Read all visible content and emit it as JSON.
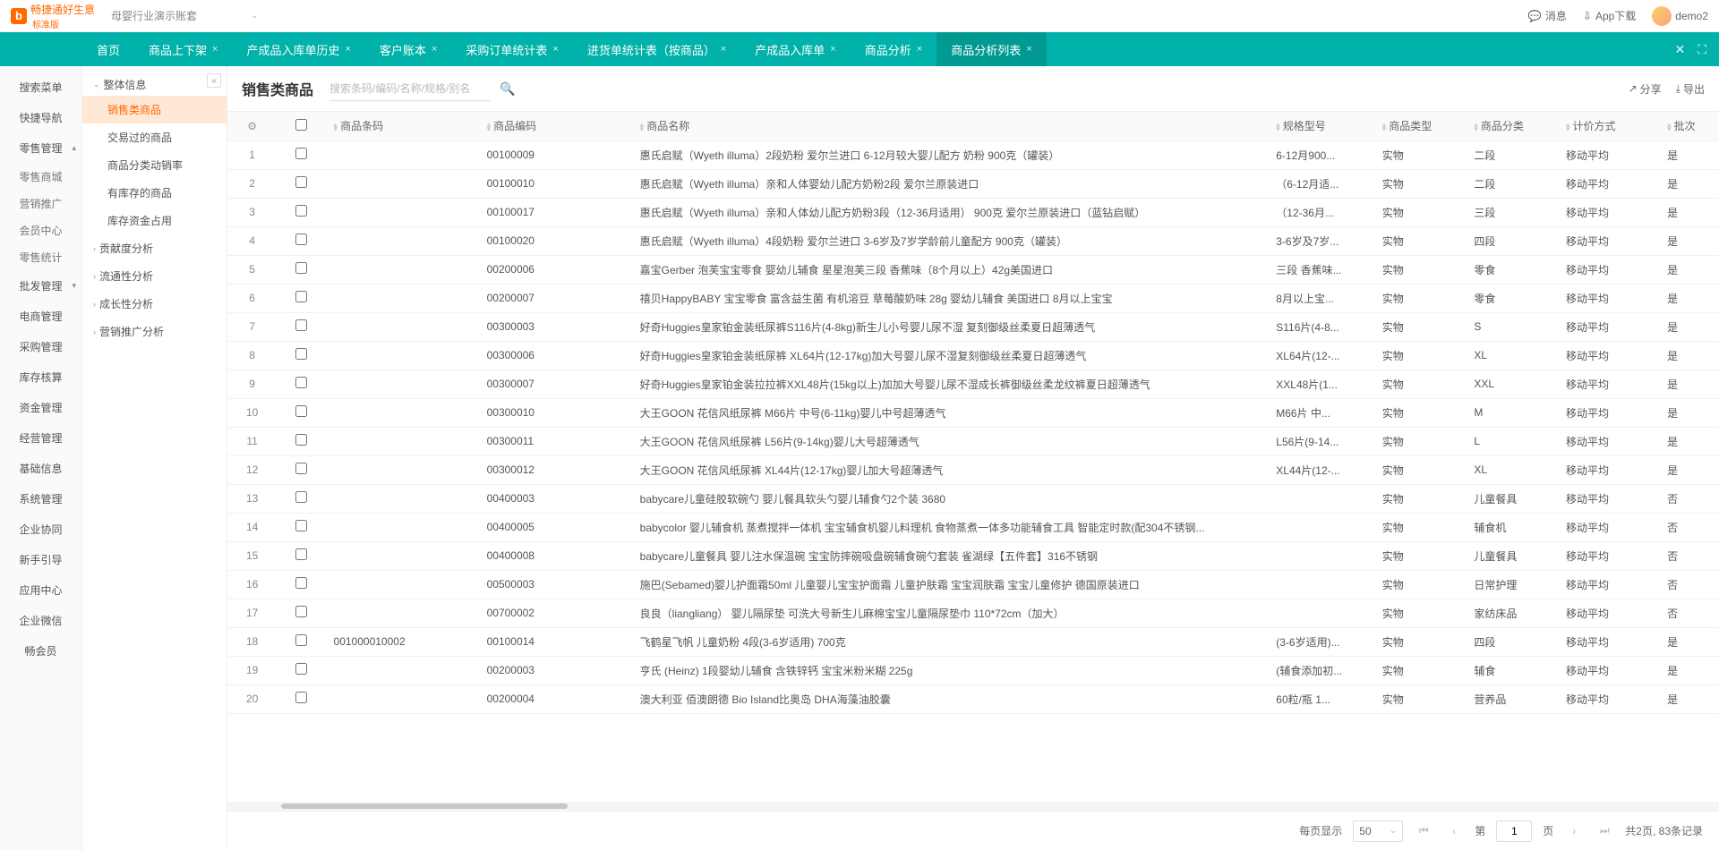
{
  "topbar": {
    "logo_text": "畅捷通好生意",
    "logo_badge": "标准版",
    "account": "母婴行业演示账套",
    "msg": "消息",
    "download": "App下载",
    "user": "demo2"
  },
  "tabs": [
    {
      "label": "首页",
      "closable": false
    },
    {
      "label": "商品上下架",
      "closable": true
    },
    {
      "label": "产成品入库单历史",
      "closable": true
    },
    {
      "label": "客户账本",
      "closable": true
    },
    {
      "label": "采购订单统计表",
      "closable": true
    },
    {
      "label": "进货单统计表（按商品）",
      "closable": true
    },
    {
      "label": "产成品入库单",
      "closable": true
    },
    {
      "label": "商品分析",
      "closable": true
    },
    {
      "label": "商品分析列表",
      "closable": true,
      "active": true
    }
  ],
  "leftnav": [
    {
      "label": "搜索菜单"
    },
    {
      "label": "快捷导航"
    },
    {
      "label": "零售管理",
      "arrow": "up",
      "subs": [
        "零售商城",
        "营销推广",
        "会员中心",
        "零售统计"
      ]
    },
    {
      "label": "批发管理",
      "arrow": "down"
    },
    {
      "label": "电商管理"
    },
    {
      "label": "采购管理"
    },
    {
      "label": "库存核算"
    },
    {
      "label": "资金管理"
    },
    {
      "label": "经营管理"
    },
    {
      "label": "基础信息"
    },
    {
      "label": "系统管理"
    },
    {
      "label": "企业协同"
    },
    {
      "label": "新手引导"
    },
    {
      "label": "应用中心"
    },
    {
      "label": "企业微信"
    },
    {
      "label": "畅会员"
    }
  ],
  "tree": {
    "head": "整体信息",
    "items": [
      {
        "label": "销售类商品",
        "sel": true
      },
      {
        "label": "交易过的商品"
      },
      {
        "label": "商品分类动销率"
      },
      {
        "label": "有库存的商品"
      },
      {
        "label": "库存资金占用"
      }
    ],
    "groups": [
      "贡献度分析",
      "流通性分析",
      "成长性分析",
      "营销推广分析"
    ]
  },
  "main": {
    "title": "销售类商品",
    "search_ph": "搜索条码/编码/名称/规格/别名",
    "share": "分享",
    "export": "导出"
  },
  "columns": [
    "",
    "",
    "商品条码",
    "商品编码",
    "商品名称",
    "规格型号",
    "商品类型",
    "商品分类",
    "计价方式",
    "批次"
  ],
  "rows": [
    {
      "i": 1,
      "bar": "",
      "code": "00100009",
      "name": "惠氏启赋（Wyeth illuma）2段奶粉 爱尔兰进口 6-12月较大婴儿配方 奶粉 900克（罐装）",
      "spec": "6-12月900...",
      "type": "实物",
      "cat": "二段",
      "price": "移动平均",
      "b": "是"
    },
    {
      "i": 2,
      "bar": "",
      "code": "00100010",
      "name": "惠氏启赋（Wyeth illuma）亲和人体婴幼儿配方奶粉2段 爱尔兰原装进口",
      "spec": "（6-12月适...",
      "type": "实物",
      "cat": "二段",
      "price": "移动平均",
      "b": "是"
    },
    {
      "i": 3,
      "bar": "",
      "code": "00100017",
      "name": "惠氏启赋（Wyeth illuma）亲和人体幼儿配方奶粉3段（12-36月适用） 900克 爱尔兰原装进口（蓝钻启赋）",
      "spec": "（12-36月...",
      "type": "实物",
      "cat": "三段",
      "price": "移动平均",
      "b": "是"
    },
    {
      "i": 4,
      "bar": "",
      "code": "00100020",
      "name": "惠氏启赋（Wyeth illuma）4段奶粉 爱尔兰进口 3-6岁及7岁学龄前儿童配方 900克（罐装）",
      "spec": "3-6岁及7岁...",
      "type": "实物",
      "cat": "四段",
      "price": "移动平均",
      "b": "是"
    },
    {
      "i": 5,
      "bar": "",
      "code": "00200006",
      "name": "嘉宝Gerber 泡芙宝宝零食 婴幼儿辅食 星星泡芙三段 香蕉味（8个月以上）42g美国进口",
      "spec": "三段 香蕉味...",
      "type": "实物",
      "cat": "零食",
      "price": "移动平均",
      "b": "是"
    },
    {
      "i": 6,
      "bar": "",
      "code": "00200007",
      "name": "禧贝HappyBABY 宝宝零食 富含益生菌 有机溶豆 草莓酸奶味 28g 婴幼儿辅食 美国进口 8月以上宝宝",
      "spec": "8月以上宝...",
      "type": "实物",
      "cat": "零食",
      "price": "移动平均",
      "b": "是"
    },
    {
      "i": 7,
      "bar": "",
      "code": "00300003",
      "name": "好奇Huggies皇家铂金装纸尿裤S116片(4-8kg)新生儿小号婴儿尿不湿 复刻御级丝柔夏日超薄透气",
      "spec": "S116片(4-8...",
      "type": "实物",
      "cat": "S",
      "price": "移动平均",
      "b": "是"
    },
    {
      "i": 8,
      "bar": "",
      "code": "00300006",
      "name": "好奇Huggies皇家铂金装纸尿裤 XL64片(12-17kg)加大号婴儿尿不湿复刻御级丝柔夏日超薄透气",
      "spec": "XL64片(12-...",
      "type": "实物",
      "cat": "XL",
      "price": "移动平均",
      "b": "是"
    },
    {
      "i": 9,
      "bar": "",
      "code": "00300007",
      "name": "好奇Huggies皇家铂金装拉拉裤XXL48片(15kg以上)加加大号婴儿尿不湿成长裤御级丝柔龙纹裤夏日超薄透气",
      "spec": "XXL48片(1...",
      "type": "实物",
      "cat": "XXL",
      "price": "移动平均",
      "b": "是"
    },
    {
      "i": 10,
      "bar": "",
      "code": "00300010",
      "name": "大王GOON 花信风纸尿裤 M66片 中号(6-11kg)婴儿中号超薄透气",
      "spec": "M66片 中...",
      "type": "实物",
      "cat": "M",
      "price": "移动平均",
      "b": "是"
    },
    {
      "i": 11,
      "bar": "",
      "code": "00300011",
      "name": "大王GOON 花信风纸尿裤 L56片(9-14kg)婴儿大号超薄透气",
      "spec": "L56片(9-14...",
      "type": "实物",
      "cat": "L",
      "price": "移动平均",
      "b": "是"
    },
    {
      "i": 12,
      "bar": "",
      "code": "00300012",
      "name": "大王GOON 花信风纸尿裤 XL44片(12-17kg)婴儿加大号超薄透气",
      "spec": "XL44片(12-...",
      "type": "实物",
      "cat": "XL",
      "price": "移动平均",
      "b": "是"
    },
    {
      "i": 13,
      "bar": "",
      "code": "00400003",
      "name": "babycare儿童硅胶软碗勺 婴儿餐具软头勺婴儿辅食勺2个装 3680",
      "spec": "",
      "type": "实物",
      "cat": "儿童餐具",
      "price": "移动平均",
      "b": "否"
    },
    {
      "i": 14,
      "bar": "",
      "code": "00400005",
      "name": "babycolor 婴儿辅食机 蒸煮搅拌一体机 宝宝辅食机婴儿料理机 食物蒸煮一体多功能辅食工具 智能定时款(配304不锈钢...",
      "spec": "",
      "type": "实物",
      "cat": "辅食机",
      "price": "移动平均",
      "b": "否"
    },
    {
      "i": 15,
      "bar": "",
      "code": "00400008",
      "name": "babycare儿童餐具 婴儿注水保温碗 宝宝防摔碗吸盘碗辅食碗勺套装 雀湖绿【五件套】316不锈钢",
      "spec": "",
      "type": "实物",
      "cat": "儿童餐具",
      "price": "移动平均",
      "b": "否"
    },
    {
      "i": 16,
      "bar": "",
      "code": "00500003",
      "name": "施巴(Sebamed)婴儿护面霜50ml 儿童婴儿宝宝护面霜 儿童护肤霜 宝宝润肤霜 宝宝儿童修护 德国原装进口",
      "spec": "",
      "type": "实物",
      "cat": "日常护理",
      "price": "移动平均",
      "b": "否"
    },
    {
      "i": 17,
      "bar": "",
      "code": "00700002",
      "name": "良良（liangliang） 婴儿隔尿垫 可洗大号新生儿麻棉宝宝儿童隔尿垫巾 110*72cm（加大）",
      "spec": "",
      "type": "实物",
      "cat": "家纺床品",
      "price": "移动平均",
      "b": "否"
    },
    {
      "i": 18,
      "bar": "001000010002",
      "code": "00100014",
      "name": "飞鹤星飞帆 儿童奶粉 4段(3-6岁适用) 700克",
      "spec": "(3-6岁适用)...",
      "type": "实物",
      "cat": "四段",
      "price": "移动平均",
      "b": "是"
    },
    {
      "i": 19,
      "bar": "",
      "code": "00200003",
      "name": "亨氏 (Heinz) 1段婴幼儿辅食 含铁锌钙 宝宝米粉米糊 225g",
      "spec": "(辅食添加初...",
      "type": "实物",
      "cat": "辅食",
      "price": "移动平均",
      "b": "是"
    },
    {
      "i": 20,
      "bar": "",
      "code": "00200004",
      "name": "澳大利亚 佰澳朗德 Bio Island比奥岛 DHA海藻油胶囊",
      "spec": "60粒/瓶 1...",
      "type": "实物",
      "cat": "营养品",
      "price": "移动平均",
      "b": "是"
    }
  ],
  "pager": {
    "per_label": "每页显示",
    "per_value": "50",
    "page_prefix": "第",
    "page_value": "1",
    "page_suffix": "页",
    "summary": "共2页, 83条记录"
  }
}
